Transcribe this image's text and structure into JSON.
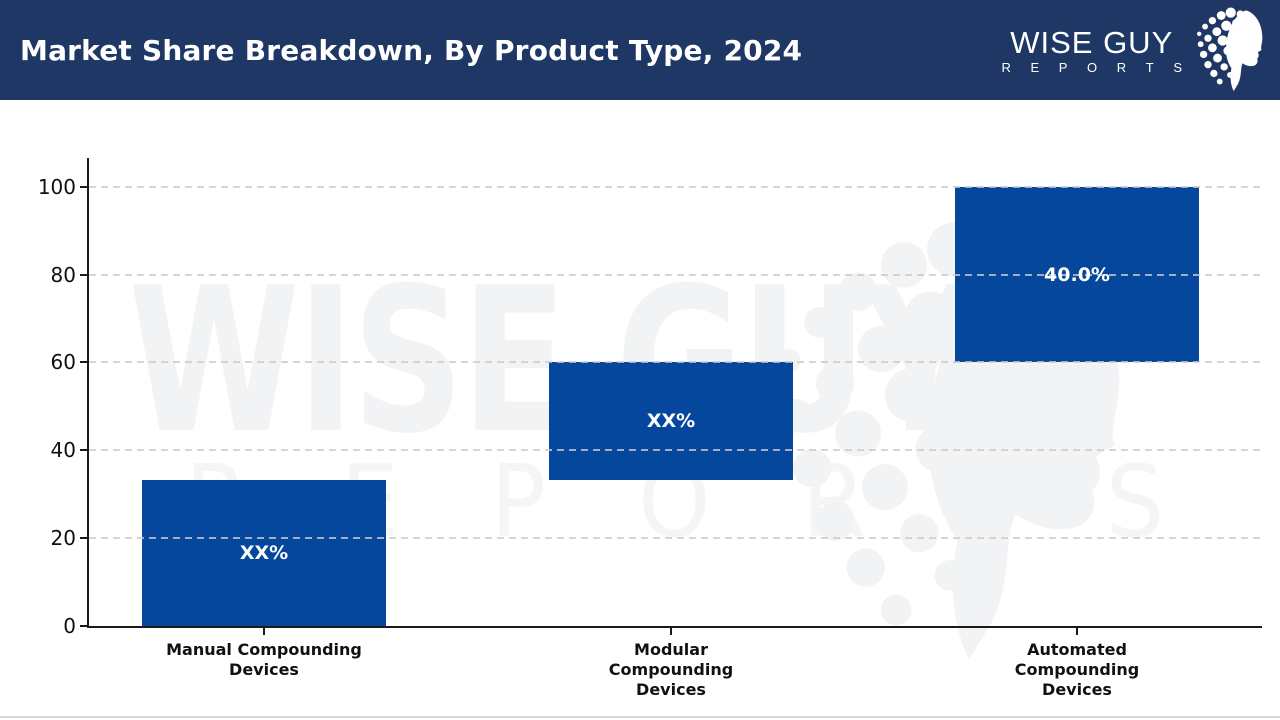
{
  "header": {
    "title": "Market Share Breakdown, By Product Type, 2024",
    "bg_color": "#1e3765",
    "logo": {
      "line1": "WISE GUY",
      "line2": "REPORTS"
    }
  },
  "watermark": {
    "line1": "WISE GUY",
    "line2": "R E P O R T S"
  },
  "chart_data": {
    "type": "bar",
    "subtype": "stacked-waterfall",
    "title": "Market Share Breakdown, By Product Type, 2024",
    "categories": [
      "Manual Compounding Devices",
      "Modular Compounding Devices",
      "Automated Compounding Devices"
    ],
    "category_label_lines": [
      [
        "Manual Compounding",
        "Devices"
      ],
      [
        "Modular",
        "Compounding",
        "Devices"
      ],
      [
        "Automated",
        "Compounding",
        "Devices"
      ]
    ],
    "segments": [
      {
        "category": "Manual Compounding Devices",
        "start": 0,
        "end": 33.3,
        "label": "XX%"
      },
      {
        "category": "Modular Compounding Devices",
        "start": 33.3,
        "end": 60,
        "label": "XX%"
      },
      {
        "category": "Automated Compounding Devices",
        "start": 60,
        "end": 100,
        "label": "40.0%"
      }
    ],
    "ylabel": "",
    "xlabel": "",
    "yticks": [
      0,
      20,
      40,
      60,
      80,
      100
    ],
    "ylim": [
      0,
      106.6
    ],
    "grid": "horizontal-dashed",
    "legend": "none",
    "bar_color": "#05479d",
    "value_label_color": "#ffffff"
  }
}
